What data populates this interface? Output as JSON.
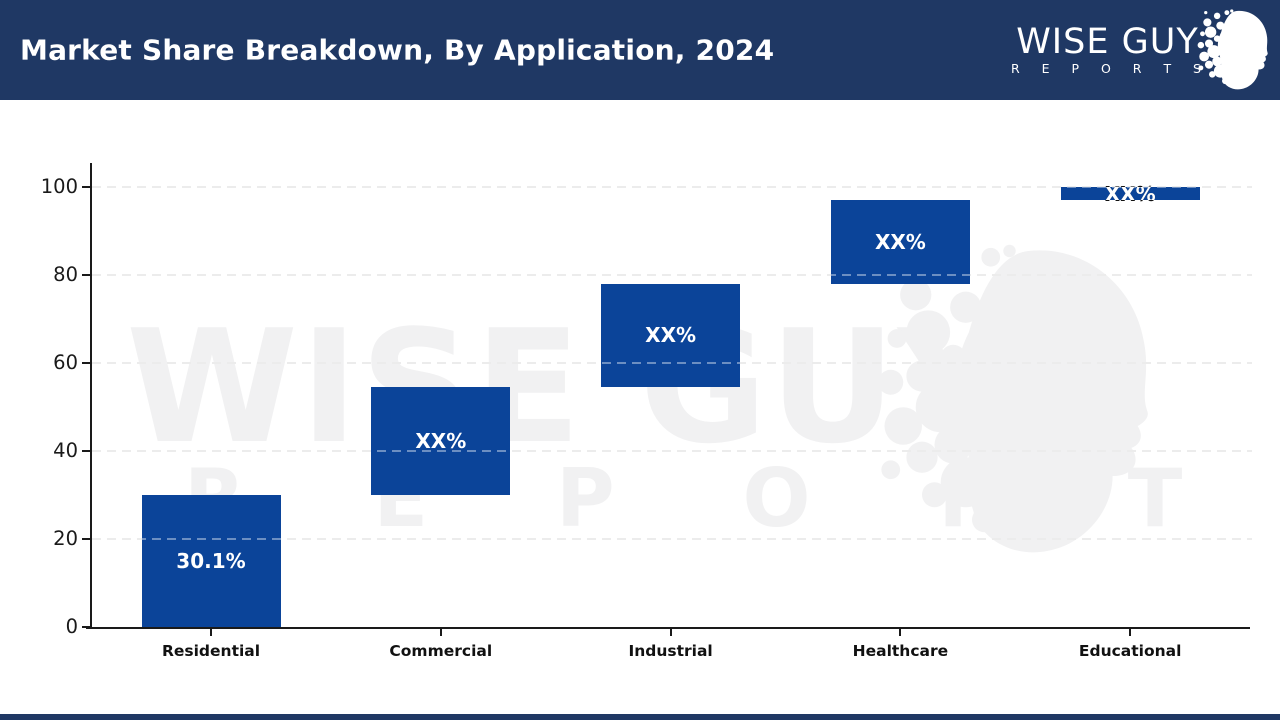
{
  "header": {
    "title": "Market Share Breakdown, By Application, 2024",
    "logo": {
      "line1": "WISE GUY",
      "line2": "R E P O R T S"
    }
  },
  "watermark": {
    "line1": "WISE GUY",
    "line2": "R E P O R T S"
  },
  "chart_data": {
    "type": "bar",
    "subtype": "waterfall-floating-bars",
    "title": "Market Share Breakdown, By Application, 2024",
    "categories": [
      "Residential",
      "Commercial",
      "Industrial",
      "Healthcare",
      "Educational"
    ],
    "segments": [
      {
        "category": "Residential",
        "start": 0,
        "end": 30.1,
        "label": "30.1%"
      },
      {
        "category": "Commercial",
        "start": 30.1,
        "end": 54.5,
        "label": "XX%"
      },
      {
        "category": "Industrial",
        "start": 54.5,
        "end": 78.0,
        "label": "XX%"
      },
      {
        "category": "Healthcare",
        "start": 78.0,
        "end": 97.0,
        "label": "XX%"
      },
      {
        "category": "Educational",
        "start": 97.0,
        "end": 100.0,
        "label": "XX%"
      }
    ],
    "xlabel": "",
    "ylabel": "",
    "ylim": [
      0,
      105
    ],
    "yticks": [
      0,
      20,
      40,
      60,
      80,
      100
    ],
    "grid": "horizontal dashed",
    "legend": "none"
  },
  "colors": {
    "header_bg": "#1f3864",
    "footer_bg": "#1f3864",
    "bar": "#0b4499",
    "bar_label": "#ffffff",
    "grid": "#dfdfdf",
    "axis": "#1a1a1a",
    "watermark": "#f1f1f2"
  }
}
